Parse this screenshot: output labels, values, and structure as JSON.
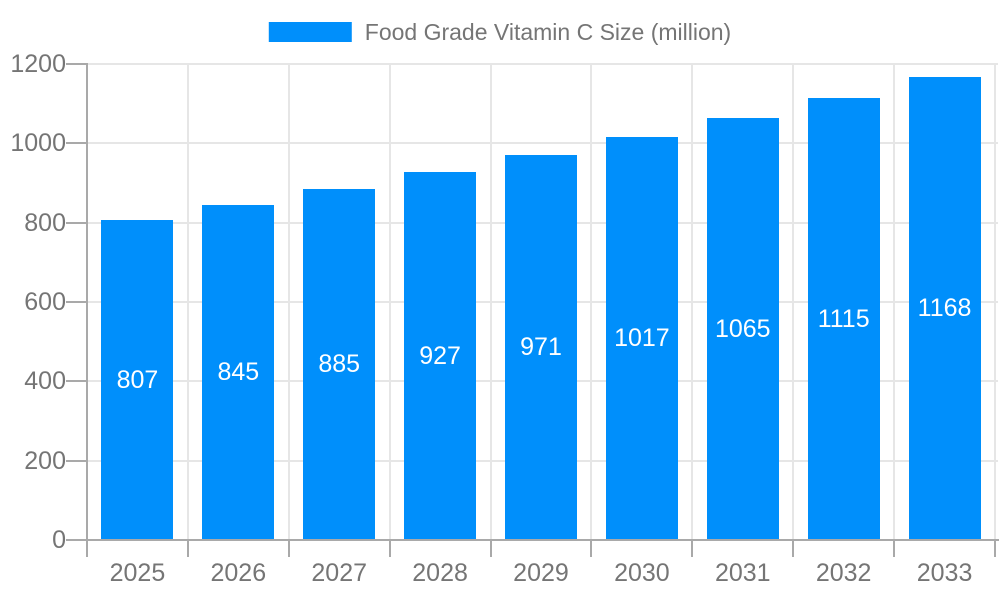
{
  "legend": {
    "label": "Food Grade Vitamin C Size (million)"
  },
  "chart_data": {
    "type": "bar",
    "title": "Food Grade Vitamin C Size (million)",
    "categories": [
      "2025",
      "2026",
      "2027",
      "2028",
      "2029",
      "2030",
      "2031",
      "2032",
      "2033"
    ],
    "series": [
      {
        "name": "Food Grade Vitamin C Size (million)",
        "values": [
          807,
          845,
          885,
          927,
          971,
          1017,
          1065,
          1115,
          1168
        ]
      }
    ],
    "xlabel": "",
    "ylabel": "",
    "ylim": [
      0,
      1200
    ],
    "yticks": [
      0,
      200,
      400,
      600,
      800,
      1000,
      1200
    ],
    "grid": true,
    "legend_position": "top-center",
    "value_labels": "inside-center",
    "colors": {
      "bar": "#008FFB",
      "value_label": "#FFFFFF",
      "axis_text": "#757575",
      "grid_line": "#E6E6E6",
      "axis_line": "#A9A9A9",
      "background": "#FFFFFF"
    }
  }
}
